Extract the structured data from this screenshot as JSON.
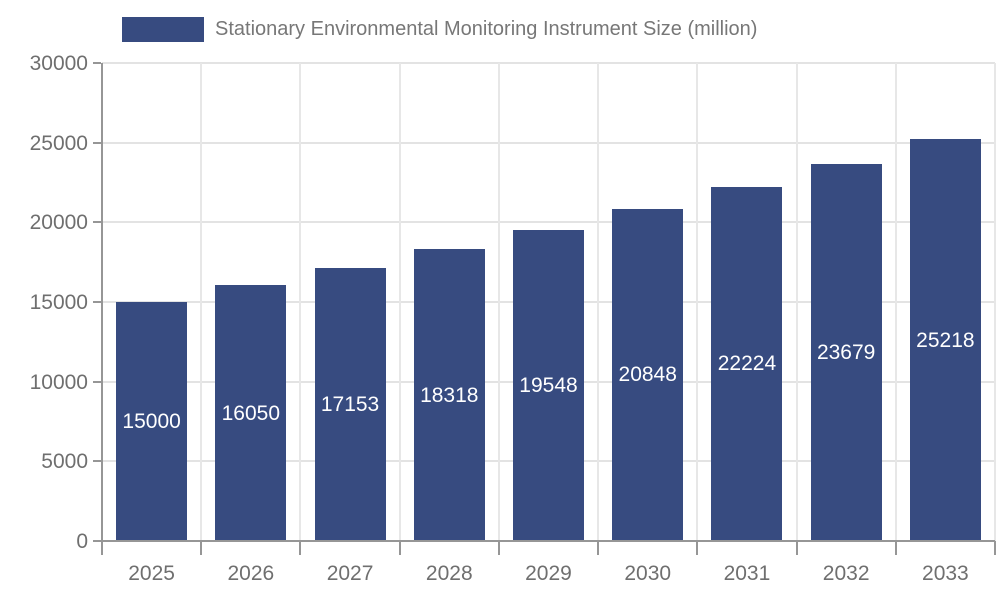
{
  "chart_data": {
    "type": "bar",
    "title": "Stationary Environmental Monitoring Instrument Size (million)",
    "categories": [
      "2025",
      "2026",
      "2027",
      "2028",
      "2029",
      "2030",
      "2031",
      "2032",
      "2033"
    ],
    "values": [
      15000,
      16050,
      17153,
      18318,
      19548,
      20848,
      22224,
      23679,
      25218
    ],
    "xlabel": "",
    "ylabel": "",
    "ylim": [
      0,
      30000
    ],
    "y_ticks": [
      0,
      5000,
      10000,
      15000,
      20000,
      25000,
      30000
    ],
    "grid": true,
    "legend_position": "top-left",
    "data_labels": "inside-center"
  },
  "colors": {
    "bar": "#374b80",
    "bar_label": "#ffffff",
    "legend_text": "#777777",
    "tick_text": "#6f6f6f",
    "gridline": "#e3e3e3",
    "axis_line": "#969696",
    "background": "#ffffff"
  }
}
